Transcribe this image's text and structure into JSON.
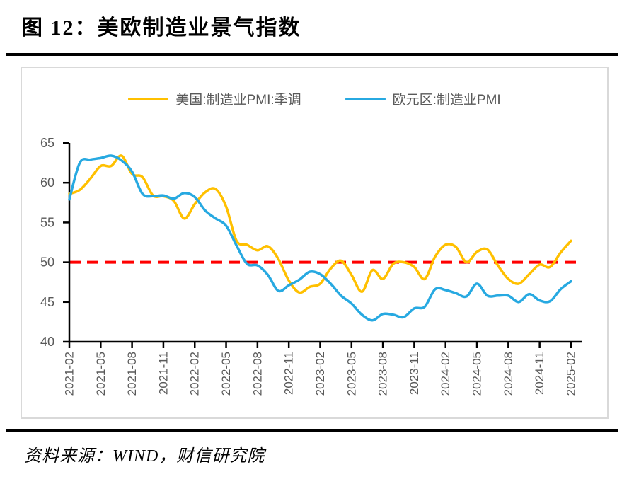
{
  "figure": {
    "title": "图 12：美欧制造业景气指数",
    "source": "资料来源：WIND，财信研究院"
  },
  "colors": {
    "us_line": "#FFC000",
    "eurozone_line": "#27A9E1",
    "reference_line": "#FF0000",
    "axis": "#000000",
    "tick_label": "#595959",
    "legend_text": "#595959",
    "panel_border": "#D9D9D9",
    "divider": "#000000"
  },
  "chart_data": {
    "type": "line",
    "title": "美欧制造业景气指数",
    "xlabel": "",
    "ylabel": "",
    "ylim": [
      40,
      65
    ],
    "y_ticks": [
      40,
      45,
      50,
      55,
      60,
      65
    ],
    "grid": false,
    "legend_position": "top-center",
    "x_tick_labels": [
      "2021-02",
      "2021-05",
      "2021-08",
      "2021-11",
      "2022-02",
      "2022-05",
      "2022-08",
      "2022-11",
      "2023-02",
      "2023-05",
      "2023-08",
      "2023-11",
      "2024-02",
      "2024-05",
      "2024-08",
      "2024-11",
      "2025-02"
    ],
    "x": [
      "2021-02",
      "2021-03",
      "2021-04",
      "2021-05",
      "2021-06",
      "2021-07",
      "2021-08",
      "2021-09",
      "2021-10",
      "2021-11",
      "2021-12",
      "2022-01",
      "2022-02",
      "2022-03",
      "2022-04",
      "2022-05",
      "2022-06",
      "2022-07",
      "2022-08",
      "2022-09",
      "2022-10",
      "2022-11",
      "2022-12",
      "2023-01",
      "2023-02",
      "2023-03",
      "2023-04",
      "2023-05",
      "2023-06",
      "2023-07",
      "2023-08",
      "2023-09",
      "2023-10",
      "2023-11",
      "2023-12",
      "2024-01",
      "2024-02",
      "2024-03",
      "2024-04",
      "2024-05",
      "2024-06",
      "2024-07",
      "2024-08",
      "2024-09",
      "2024-10",
      "2024-11",
      "2024-12",
      "2025-01",
      "2025-02"
    ],
    "series": [
      {
        "name": "美国:制造业PMI:季调",
        "color": "#FFC000",
        "values": [
          58.6,
          59.1,
          60.5,
          62.1,
          62.1,
          63.4,
          61.1,
          60.7,
          58.4,
          58.3,
          57.7,
          55.5,
          57.3,
          58.8,
          59.2,
          57.0,
          52.7,
          52.2,
          51.5,
          52.0,
          50.4,
          47.7,
          46.2,
          46.9,
          47.3,
          49.2,
          50.2,
          48.4,
          46.3,
          49.0,
          47.9,
          49.8,
          50.0,
          49.4,
          47.9,
          50.7,
          52.2,
          51.9,
          50.0,
          51.3,
          51.6,
          49.6,
          47.9,
          47.3,
          48.5,
          49.7,
          49.4,
          51.2,
          52.7
        ]
      },
      {
        "name": "欧元区:制造业PMI",
        "color": "#27A9E1",
        "values": [
          57.9,
          62.5,
          62.9,
          63.1,
          63.4,
          62.8,
          61.4,
          58.6,
          58.3,
          58.4,
          58.0,
          58.7,
          58.2,
          56.5,
          55.5,
          54.6,
          52.1,
          49.8,
          49.6,
          48.4,
          46.4,
          47.1,
          47.8,
          48.8,
          48.5,
          47.3,
          45.8,
          44.8,
          43.4,
          42.7,
          43.5,
          43.4,
          43.1,
          44.2,
          44.4,
          46.6,
          46.5,
          46.1,
          45.7,
          47.3,
          45.8,
          45.8,
          45.8,
          45.0,
          46.0,
          45.2,
          45.1,
          46.6,
          47.6
        ]
      }
    ],
    "reference_line": {
      "value": 50,
      "color": "#FF0000",
      "style": "dashed"
    }
  }
}
